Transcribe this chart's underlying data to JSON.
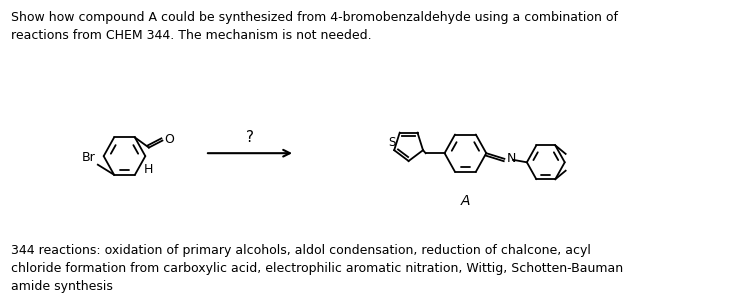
{
  "title_text": "Show how compound A could be synthesized from 4-bromobenzaldehyde using a combination of\nreactions from CHEM 344. The mechanism is not needed.",
  "footer_text": "344 reactions: oxidation of primary alcohols, aldol condensation, reduction of chalcone, acyl\nchloride formation from carboxylic acid, electrophilic aromatic nitration, Wittig, Schotten-Bauman\namide synthesis",
  "question_mark": "?",
  "label_A": "A",
  "bg_color": "#ffffff",
  "text_color": "#000000",
  "title_fontsize": 9.0,
  "footer_fontsize": 9.0,
  "fig_width": 7.52,
  "fig_height": 3.07,
  "dpi": 100
}
